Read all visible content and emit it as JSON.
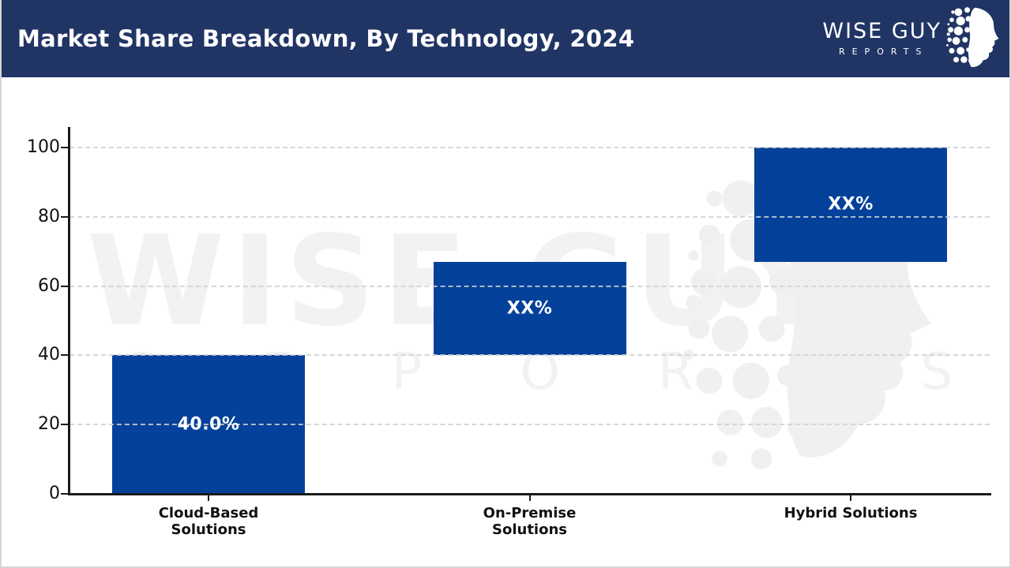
{
  "header": {
    "title": "Market Share Breakdown, By Technology, 2024",
    "bg_color": "#213565",
    "text_color": "#ffffff",
    "logo": {
      "line1": "WISE GUY",
      "line2": "REPORTS"
    }
  },
  "watermark": {
    "line1": "WISE GUY",
    "line2": "R E P O R T S"
  },
  "chart_data": {
    "type": "bar",
    "subtype": "floating-waterfall",
    "title": "Market Share Breakdown, By Technology, 2024",
    "categories": [
      [
        "Cloud-Based",
        "Solutions"
      ],
      [
        "On-Premise",
        "Solutions"
      ],
      [
        "Hybrid Solutions"
      ]
    ],
    "bars": [
      {
        "category": "Cloud-Based Solutions",
        "start": 0,
        "end": 40,
        "value_label": "40.0%"
      },
      {
        "category": "On-Premise Solutions",
        "start": 40,
        "end": 67,
        "value_label": "XX%"
      },
      {
        "category": "Hybrid Solutions",
        "start": 67,
        "end": 100,
        "value_label": "XX%"
      }
    ],
    "yticks": [
      0,
      20,
      40,
      60,
      80,
      100
    ],
    "ylim": [
      0,
      106
    ],
    "xlabel": "",
    "ylabel": "",
    "grid": "horizontal-dashed",
    "legend": "none",
    "bar_color": "#04419b",
    "bar_label_color": "#ffffff",
    "grid_color": "#d2d2d4",
    "axis_color": "#1a1a1a"
  }
}
